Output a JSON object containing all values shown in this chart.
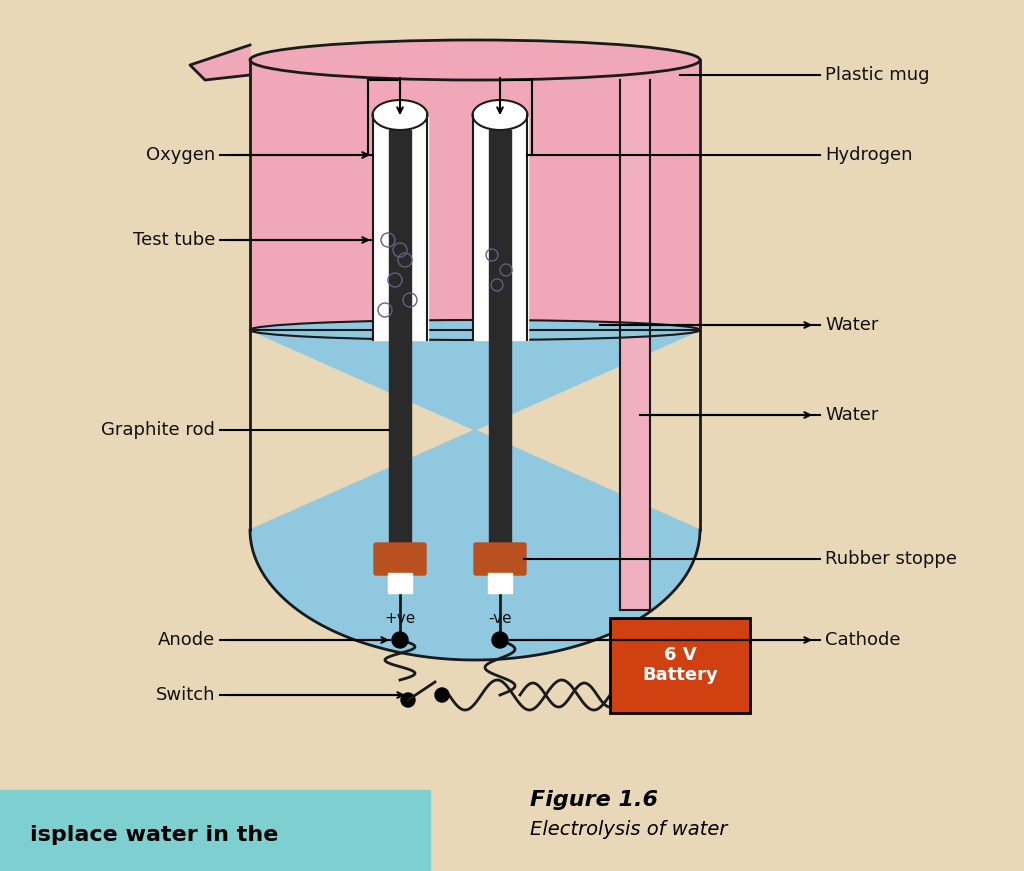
{
  "title": "Figure 1.6",
  "subtitle": "Electrolysis of water",
  "bg_color": "#e8d8b8",
  "mug_fill_pink": "#f0a8b8",
  "mug_fill_water": "#90c8e0",
  "mug_stroke": "#1a1a1a",
  "test_tube_fill": "#e0e8f0",
  "graphite_color": "#2a2a2a",
  "rubber_color": "#b85020",
  "wire_color": "#d8c0a0",
  "battery_fill": "#d04010",
  "battery_text_color": "#ffffff",
  "handle_pink": "#f0b0c0",
  "labels": {
    "plastic_mug": "Plastic mug",
    "oxygen": "Oxygen",
    "hydrogen": "Hydrogen",
    "test_tube": "Test tube",
    "water1": "Water",
    "water2": "Water",
    "graphite_rod": "Graphite rod",
    "rubber_stopper": "Rubber stoppe",
    "anode": "Anode",
    "cathode": "Cathode",
    "switch": "Switch",
    "battery": "6 V\nBattery",
    "plus": "+ve",
    "minus": "-ve"
  },
  "figsize": [
    10.24,
    8.71
  ],
  "dpi": 100
}
